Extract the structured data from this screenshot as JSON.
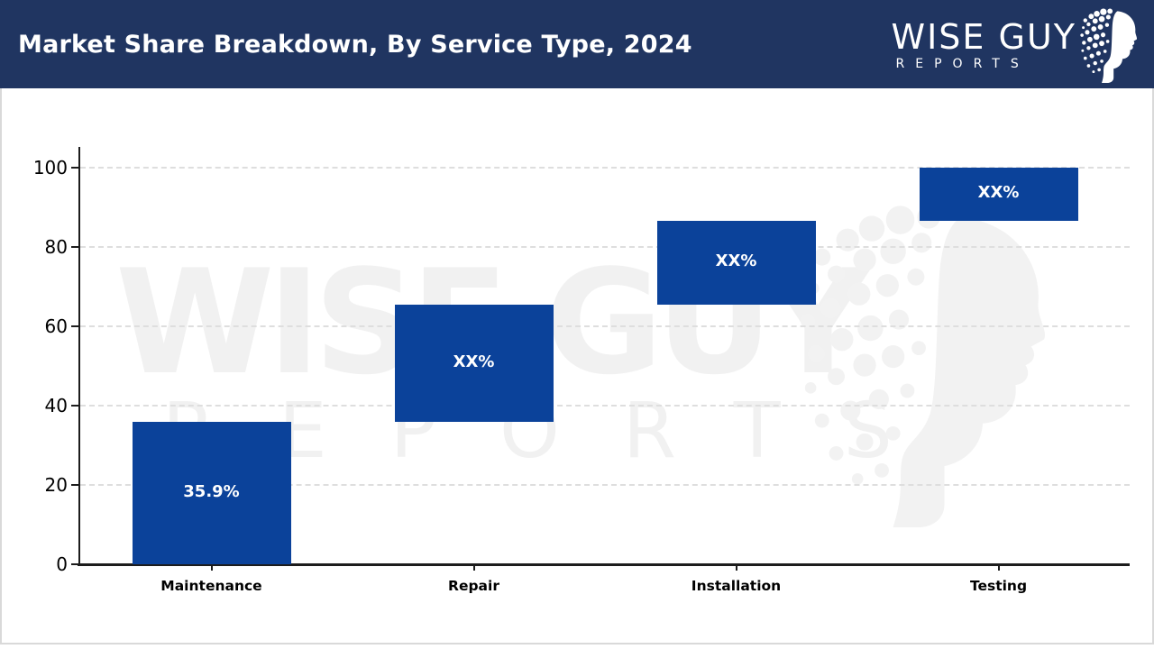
{
  "header": {
    "title": "Market Share Breakdown, By Service Type, 2024",
    "logo": {
      "line1": "WISE GUY",
      "line2": "REPORTS"
    }
  },
  "watermark": {
    "line1": "WISE GUY",
    "line2": "REPORTS"
  },
  "colors": {
    "header_bg": "#203561",
    "bar": "#0b429a",
    "grid": "#dedede",
    "axis": "#1c1c1c",
    "watermark": "#f1f1f1",
    "title_text": "#ffffff"
  },
  "chart_data": {
    "type": "bar",
    "subtype": "waterfall",
    "title": "Market Share Breakdown, By Service Type, 2024",
    "xlabel": "",
    "ylabel": "",
    "categories": [
      "Maintenance",
      "Repair",
      "Installation",
      "Testing"
    ],
    "segments": [
      {
        "category": "Maintenance",
        "start": 0,
        "end": 35.9,
        "label": "35.9%"
      },
      {
        "category": "Repair",
        "start": 35.9,
        "end": 65.5,
        "label": "XX%"
      },
      {
        "category": "Installation",
        "start": 65.5,
        "end": 86.7,
        "label": "XX%"
      },
      {
        "category": "Testing",
        "start": 86.7,
        "end": 100,
        "label": "XX%"
      }
    ],
    "yticks": [
      0,
      20,
      40,
      60,
      80,
      100
    ],
    "ylim": [
      0,
      105
    ],
    "grid": "horizontal-dashed",
    "legend": "none"
  }
}
